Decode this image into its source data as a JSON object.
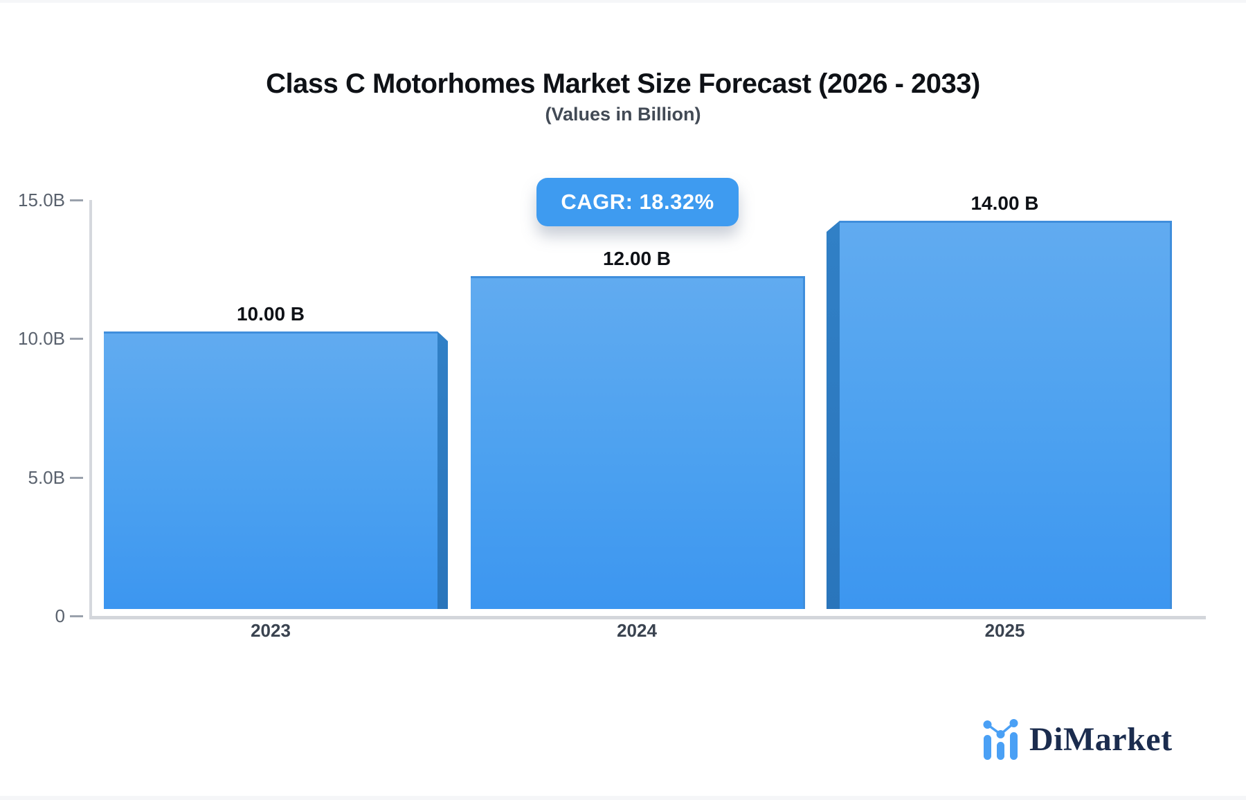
{
  "header": {
    "title": "Class C Motorhomes Market Size Forecast (2026 - 2033)",
    "subtitle": "(Values in Billion)",
    "cagr_badge": "CAGR: 18.32%"
  },
  "footer": {
    "brand": "DiMarket",
    "logo_icon": "mini-bar-chart-icon"
  },
  "colors": {
    "bar_top": "#61abf0",
    "bar_bottom": "#3c96f0",
    "bar_side_3d": "#2d7ac0",
    "badge_blue": "#3e9bf0",
    "axis_gray": "#d5d8dd",
    "logo_navy": "#1b2c4e",
    "logo_blue": "#4aa0f5"
  },
  "chart_data": {
    "type": "bar",
    "title": "Class C Motorhomes Market Size Forecast (2026 - 2033)",
    "subtitle": "(Values in Billion)",
    "annotation": "CAGR: 18.32%",
    "categories": [
      "2023",
      "2024",
      "2025"
    ],
    "values": [
      10,
      12,
      14
    ],
    "value_labels": [
      "10.00 B",
      "12.00 B",
      "14.00 B"
    ],
    "unit": "Billion",
    "xlabel": "",
    "ylabel": "",
    "ylim": [
      0,
      15
    ],
    "yticks": [
      {
        "value": 0,
        "label": "0"
      },
      {
        "value": 5,
        "label": "5.0B"
      },
      {
        "value": 10,
        "label": "10.0B"
      },
      {
        "value": 15,
        "label": "15.0B"
      }
    ],
    "grid": false,
    "legend": "none"
  }
}
